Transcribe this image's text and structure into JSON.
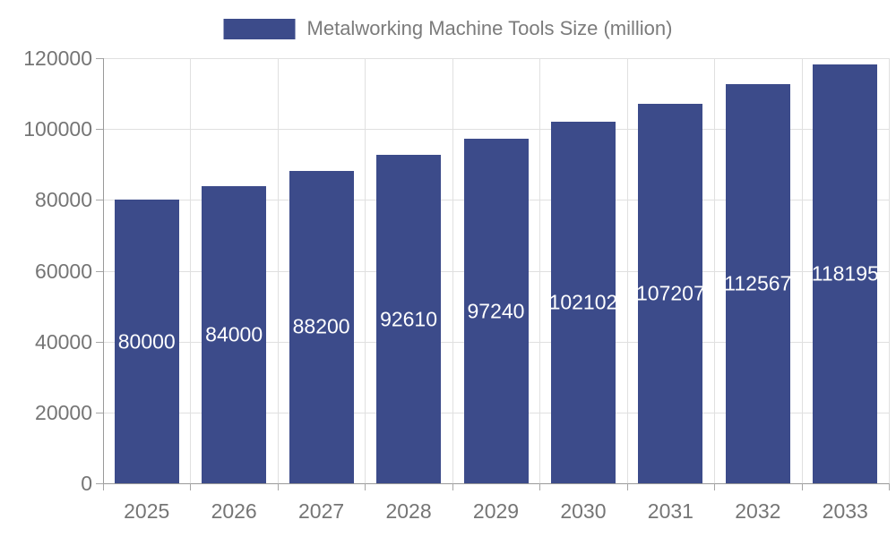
{
  "legend": {
    "label": "Metalworking Machine Tools Size (million)"
  },
  "colors": {
    "bar": "#3C4B8A",
    "bar_label": "#ffffff",
    "grid": "#e0e0e0",
    "axis_line": "#999999",
    "tick": "#a6a6a6",
    "axis_label_text": "#757575",
    "legend_text": "#7b7b7b",
    "background": "#ffffff"
  },
  "chart_data": {
    "type": "bar",
    "title": "",
    "legend_entries": [
      "Metalworking Machine Tools Size (million)"
    ],
    "legend_position": "top-center",
    "categories": [
      "2025",
      "2026",
      "2027",
      "2028",
      "2029",
      "2030",
      "2031",
      "2032",
      "2033"
    ],
    "series": [
      {
        "name": "Metalworking Machine Tools Size (million)",
        "values": [
          80000,
          84000,
          88200,
          92610,
          97240,
          102102,
          107207,
          112567,
          118195
        ]
      }
    ],
    "bar_value_labels": [
      "80000",
      "84000",
      "88200",
      "92610",
      "97240",
      "102102",
      "107207",
      "112567",
      "118195"
    ],
    "bar_labels_inside": true,
    "xlabel": "",
    "ylabel": "",
    "ylim": [
      0,
      120000
    ],
    "yticks": [
      0,
      20000,
      40000,
      60000,
      80000,
      100000,
      120000
    ],
    "ytick_labels": [
      "0",
      "20000",
      "40000",
      "60000",
      "80000",
      "100000",
      "120000"
    ],
    "grid": true
  }
}
